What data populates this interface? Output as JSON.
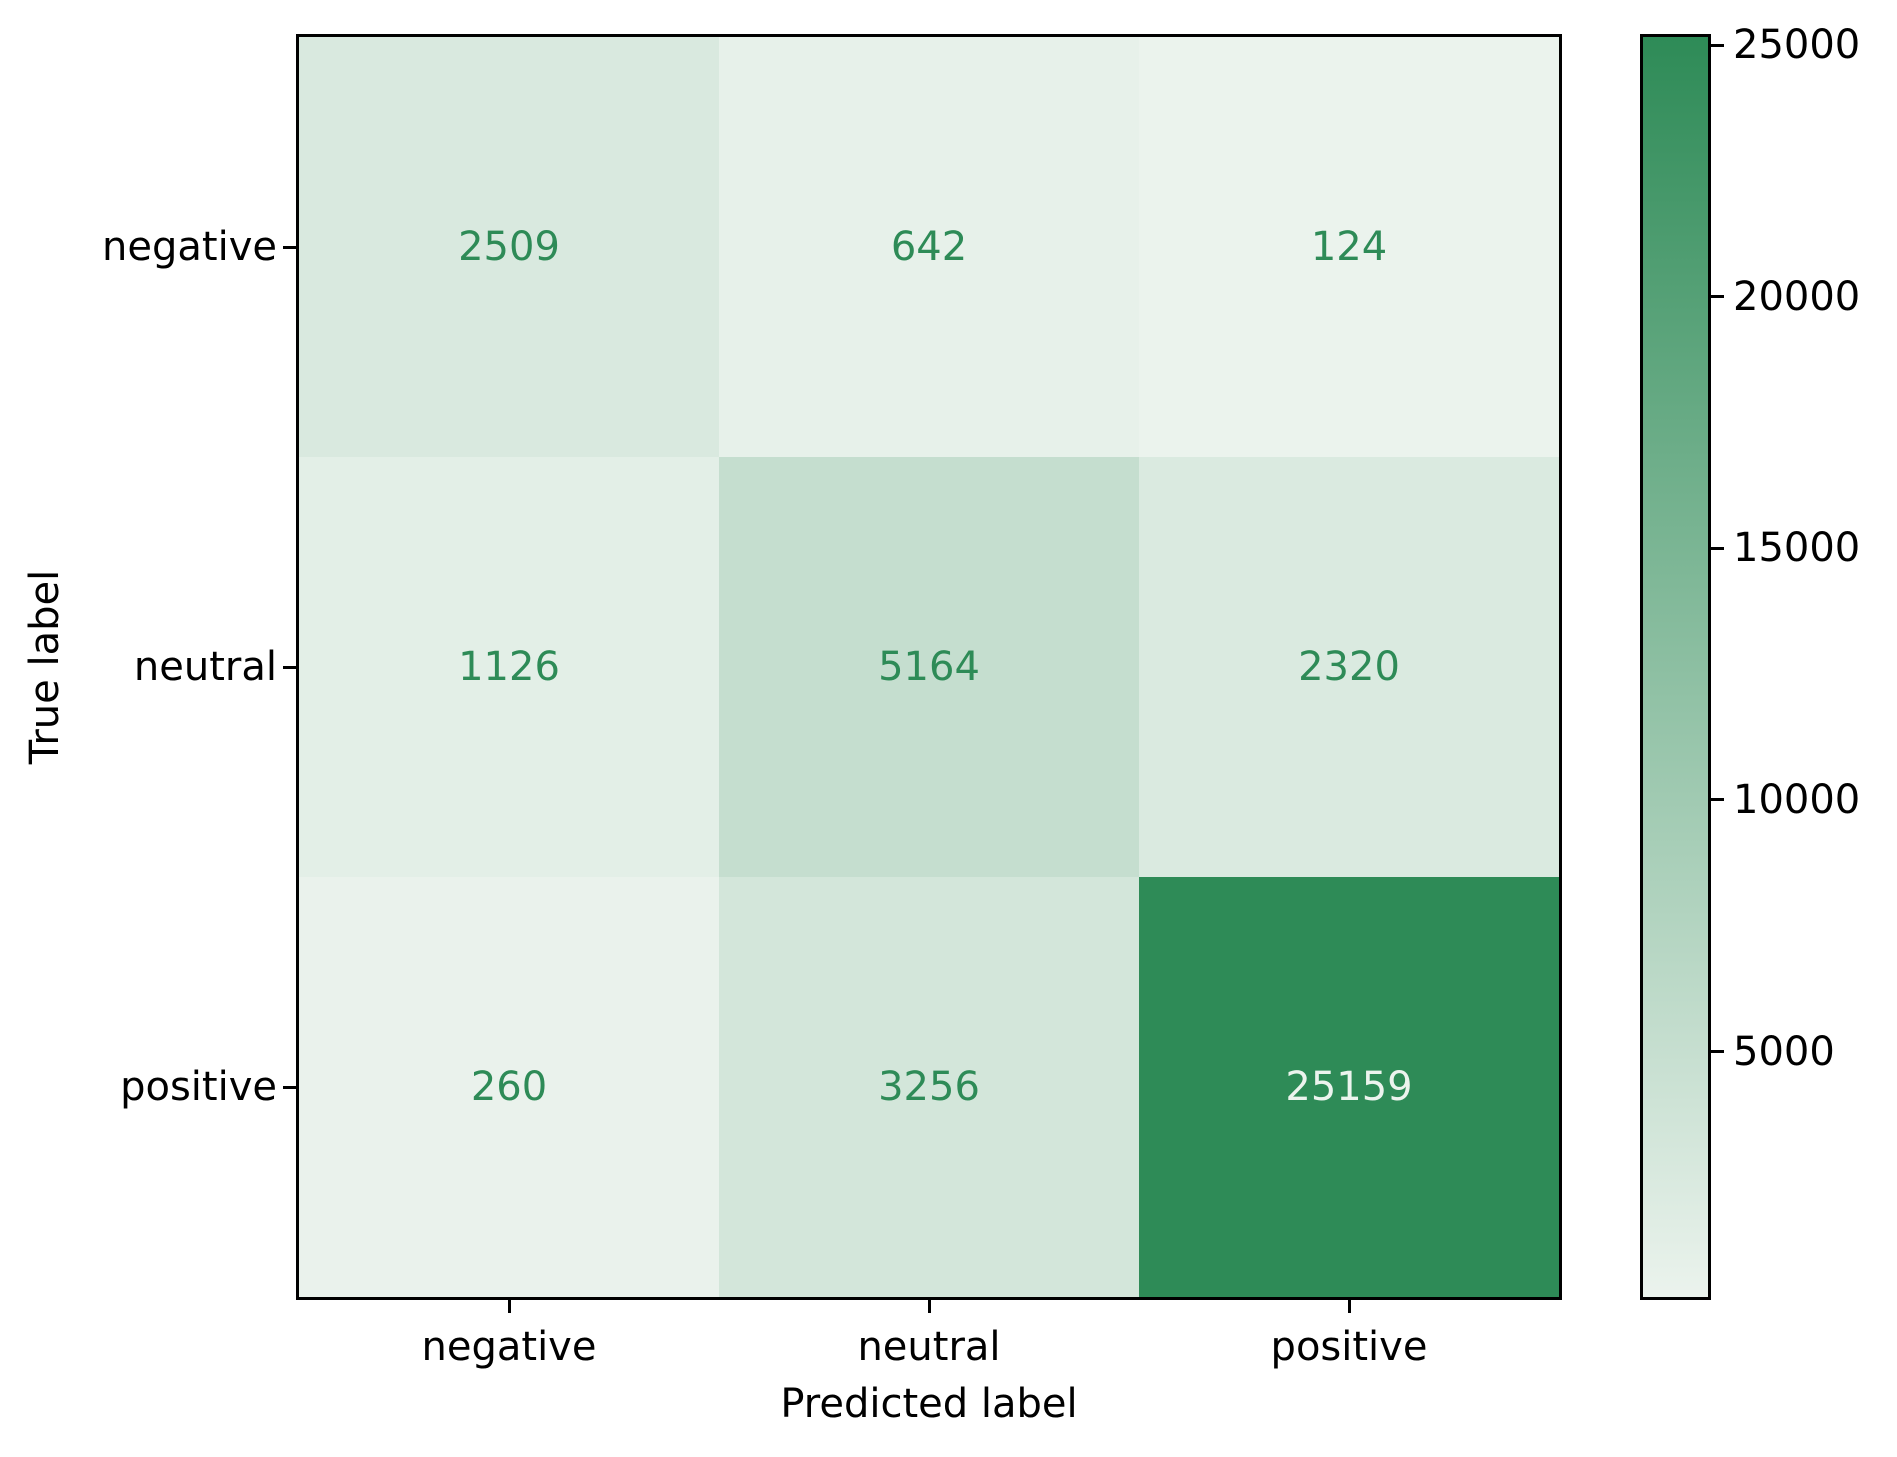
{
  "chart_data": {
    "type": "heatmap",
    "title": "",
    "xlabel": "Predicted label",
    "ylabel": "True label",
    "x_categories": [
      "negative",
      "neutral",
      "positive"
    ],
    "y_categories": [
      "negative",
      "neutral",
      "positive"
    ],
    "matrix": [
      [
        2509,
        642,
        124
      ],
      [
        1126,
        5164,
        2320
      ],
      [
        260,
        3256,
        25159
      ]
    ],
    "vmin": 124,
    "vmax": 25159,
    "colorbar_ticks": [
      5000,
      10000,
      15000,
      20000,
      25000
    ],
    "colormap": {
      "low": "#ebf3ed",
      "high": "#2e8b57"
    },
    "annotation_colors": {
      "on_light": "#2e8b57",
      "on_dark": "#ecf4ee"
    },
    "axis_color": "#000000",
    "legend_position": "right-colorbar",
    "grid": false
  }
}
